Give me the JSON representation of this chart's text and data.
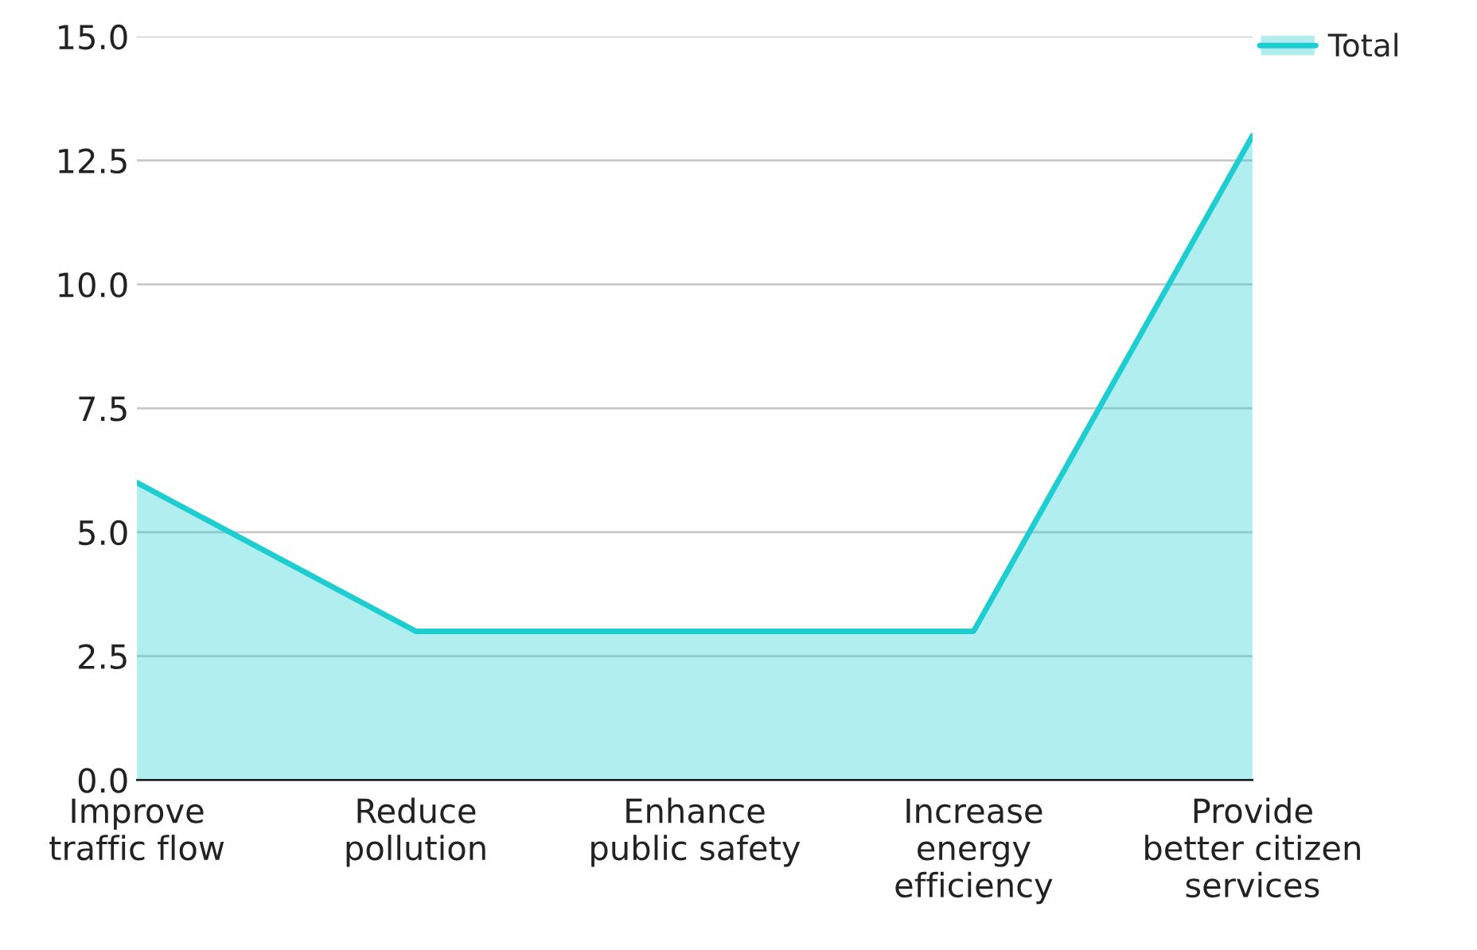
{
  "chart_data": {
    "type": "area",
    "categories": [
      "Improve\ntraffic flow",
      "Reduce\npollution",
      "Enhance\npublic safety",
      "Increase\nenergy\nefficiency",
      "Provide\nbetter citizen\nservices"
    ],
    "series": [
      {
        "name": "Total",
        "color": "#1ecdd0",
        "values": [
          6,
          3,
          3,
          3,
          13
        ]
      }
    ],
    "ylim": [
      0,
      15
    ],
    "yticks": [
      {
        "value": 0,
        "label": "0.0"
      },
      {
        "value": 2.5,
        "label": "2.5"
      },
      {
        "value": 5,
        "label": "5.0"
      },
      {
        "value": 7.5,
        "label": "7.5"
      },
      {
        "value": 10,
        "label": "10.0"
      },
      {
        "value": 12.5,
        "label": "12.5"
      },
      {
        "value": 15,
        "label": "15.0"
      }
    ],
    "grid": "y",
    "legend": "top right"
  }
}
